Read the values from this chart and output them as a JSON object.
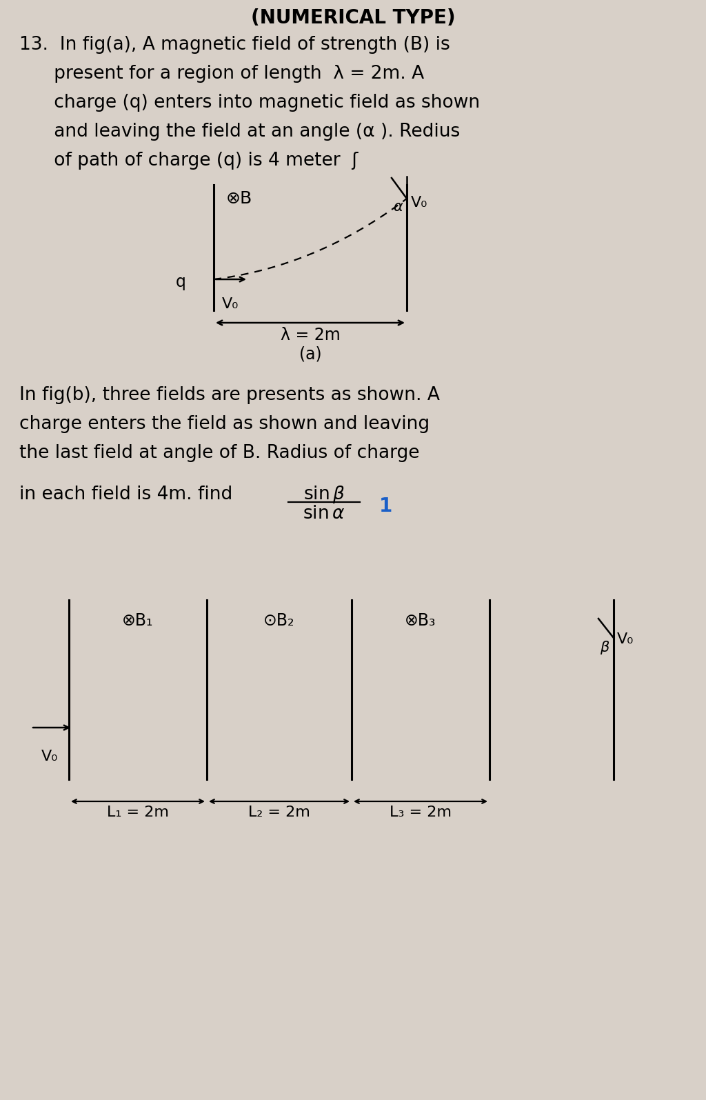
{
  "background_color": "#d8d0c8",
  "text_color": "#000000",
  "title_text": "(NUMERICAL TYPE)",
  "problem_lines": [
    "13.  In fig(a), A magnetic field of strength (B) is",
    "      present for a region of length  λ = 2m. A",
    "      charge (q) enters into magnetic field as shown",
    "      and leaving the field at an angle (α ). Redius",
    "      of path of charge (q) is 4 meter  ʃ"
  ],
  "figa_B_label": "⊗B",
  "figa_lambda_label": "λ = 2m",
  "figa_label": "(a)",
  "figa_q_label": "q",
  "figa_V0_entry": "V₀",
  "figa_alpha_label": "α",
  "figa_V0_exit": "V₀",
  "figb_lines": [
    "In fig(b), three fields are presents as shown. A",
    "charge enters the field as shown and leaving",
    "the last field at angle of B. Radius of charge"
  ],
  "figb_formula": "in each field is 4m. find",
  "figb_B1": "⊗B₁",
  "figb_B2": "⊙B₂",
  "figb_B3": "⊗B₃",
  "figb_L1": "L₁ = 2m",
  "figb_L2": "L₂ = 2m",
  "figb_L3": "L₃ = 2m",
  "figb_V0_entry": "V₀",
  "figb_V0_exit": "V₀",
  "figb_beta": "β",
  "answer_color": "#1a5fc8"
}
